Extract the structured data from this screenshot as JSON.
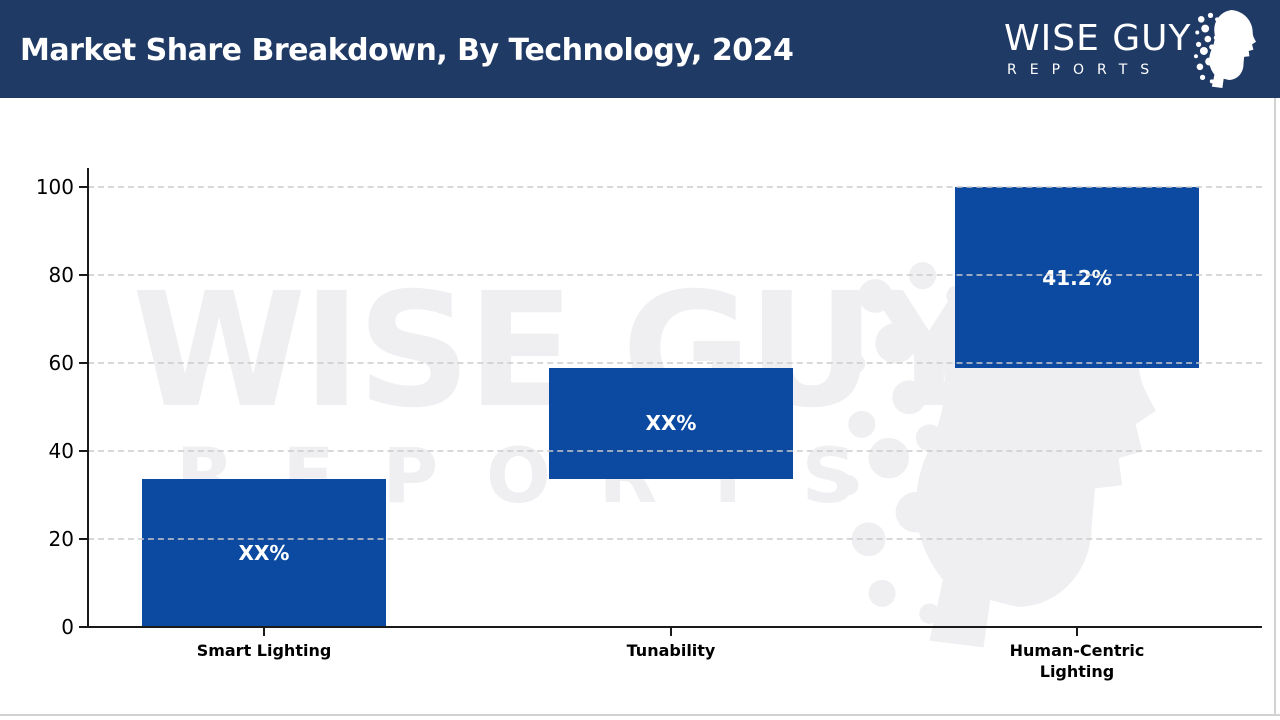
{
  "header": {
    "title": "Market Share Breakdown, By Technology, 2024",
    "bg_color": "#203a66",
    "brand": {
      "line1": "WISE GUY",
      "line2": "REPORTS"
    }
  },
  "watermark": {
    "line1": "WISE GUY",
    "line2": "REPORTS"
  },
  "chart_data": {
    "type": "bar",
    "subtype": "floating-waterfall",
    "title": "Market Share Breakdown, By Technology, 2024",
    "categories": [
      "Smart Lighting",
      "Tunability",
      "Human-Centric\nLighting"
    ],
    "segments": [
      {
        "category": "Smart Lighting",
        "start": 0,
        "end": 33.7,
        "value_label": "XX%"
      },
      {
        "category": "Tunability",
        "start": 33.7,
        "end": 58.8,
        "value_label": "XX%"
      },
      {
        "category": "Human-Centric Lighting",
        "start": 58.8,
        "end": 100,
        "value_label": "41.2%"
      }
    ],
    "series": [
      {
        "name": "Market Share %",
        "values": [
          33.7,
          25.1,
          41.2
        ]
      }
    ],
    "ylim": [
      0,
      100
    ],
    "yticks": [
      0,
      20,
      40,
      60,
      80,
      100
    ],
    "xlabel": "",
    "ylabel": "",
    "grid": "horizontal-dashed",
    "legend": "none",
    "bar_color": "#0b4aa0",
    "value_label_color": "#ffffff",
    "axis_color": "#1a1a1a"
  }
}
